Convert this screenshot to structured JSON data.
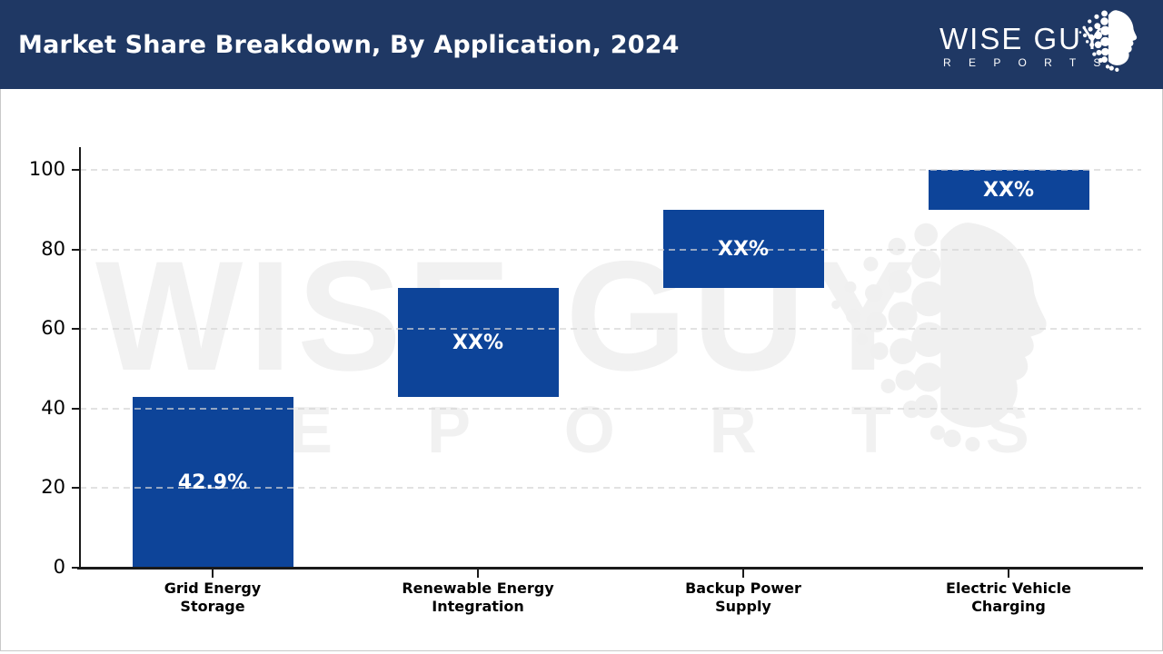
{
  "header": {
    "title": "Market Share Breakdown, By Application, 2024",
    "logo": {
      "wordmark": "WISE GUY",
      "sub": "R E P O R T S"
    }
  },
  "watermark": {
    "wordmark": "WISE GUY",
    "sub": "R E P O R T S"
  },
  "colors": {
    "header_bg": "#1f3864",
    "bar": "#0d4499",
    "bar_label": "#ffffff",
    "axis": "#1a1a1a",
    "grid_dash": "#d5d5d5",
    "watermark": "#f1f1f1",
    "border": "#c9c9c9"
  },
  "chart_data": {
    "type": "bar",
    "subtype": "waterfall",
    "title": "Market Share Breakdown, By Application, 2024",
    "categories": [
      "Grid Energy Storage",
      "Renewable Energy Integration",
      "Backup Power Supply",
      "Electric Vehicle Charging"
    ],
    "category_lines": [
      [
        "Grid Energy",
        "Storage"
      ],
      [
        "Renewable Energy",
        "Integration"
      ],
      [
        "Backup Power",
        "Supply"
      ],
      [
        "Electric Vehicle",
        "Charging"
      ]
    ],
    "segments": [
      {
        "category": "Grid Energy Storage",
        "start": 0,
        "end": 42.9,
        "label": "42.9%"
      },
      {
        "category": "Renewable Energy Integration",
        "start": 42.9,
        "end": 70.3,
        "label": "XX%"
      },
      {
        "category": "Backup Power Supply",
        "start": 70.3,
        "end": 89.9,
        "label": "XX%"
      },
      {
        "category": "Electric Vehicle Charging",
        "start": 89.9,
        "end": 100,
        "label": "XX%"
      }
    ],
    "yticks": [
      0,
      20,
      40,
      60,
      80,
      100
    ],
    "ylim": [
      0,
      105
    ],
    "xlabel": "",
    "ylabel": "",
    "grid": "horizontal-dashed",
    "legend": "none"
  }
}
